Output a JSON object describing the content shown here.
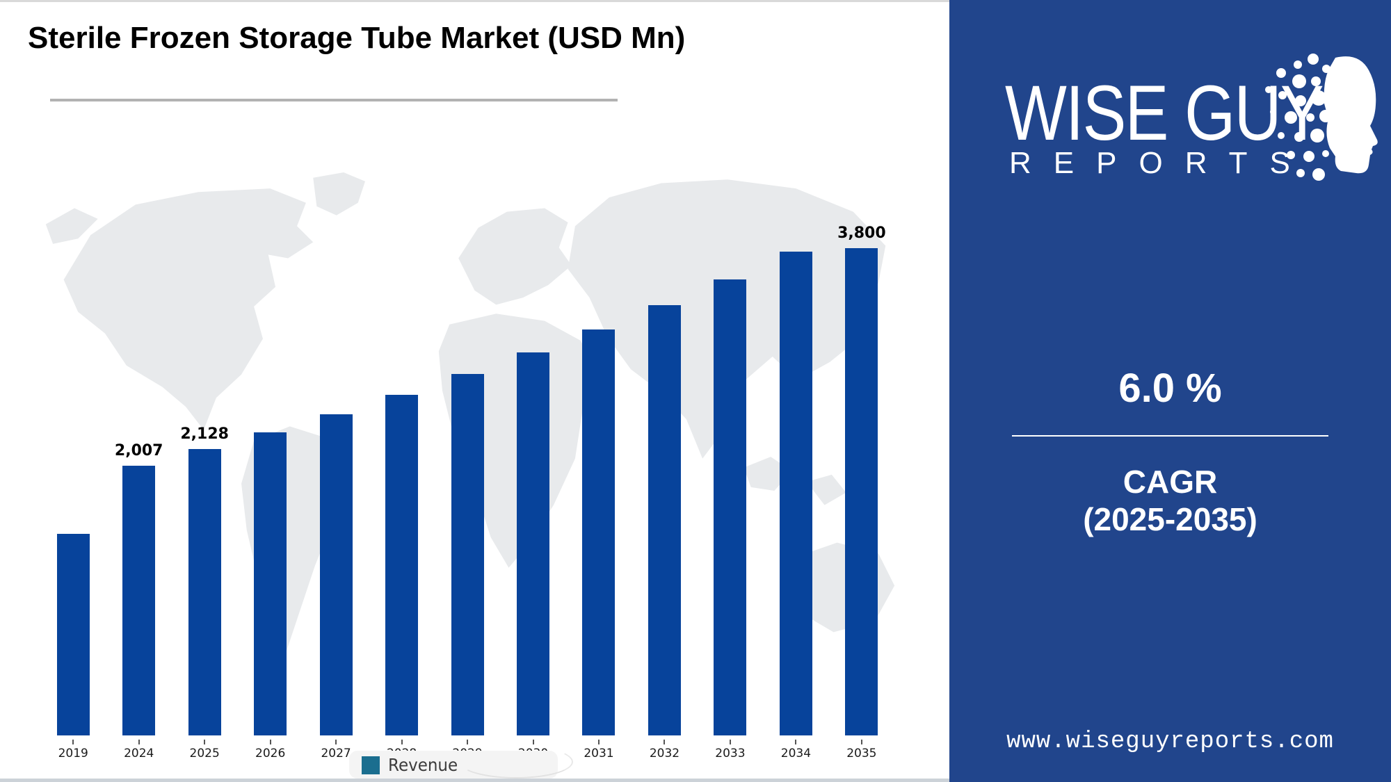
{
  "title": "Sterile Frozen Storage Tube Market (USD Mn)",
  "chart_data": {
    "type": "bar",
    "title": "Sterile Frozen Storage Tube Market (USD Mn)",
    "categories": [
      "2019",
      "2024",
      "2025",
      "2026",
      "2027",
      "2028",
      "2029",
      "2030",
      "2031",
      "2032",
      "2033",
      "2034",
      "2035"
    ],
    "series": [
      {
        "name": "Revenue",
        "values": [
          1500,
          2007,
          2128,
          2256,
          2391,
          2535,
          2687,
          2848,
          3019,
          3200,
          3392,
          3596,
          3800
        ]
      }
    ],
    "data_labels": [
      "",
      "2,007",
      "2,128",
      "",
      "",
      "",
      "",
      "",
      "",
      "",
      "",
      "",
      "3,800"
    ],
    "xlabel": "",
    "ylabel": "",
    "ylim": [
      0,
      3800
    ],
    "grid": false,
    "legend_position": "bottom",
    "legend": [
      {
        "label": "Revenue",
        "color": "#1b6e8f"
      }
    ],
    "bar_color": "#07439B"
  },
  "side_panel": {
    "logo_line1": "WISE GUY",
    "logo_line2": "REPORTS",
    "cagr_value": "6.0 %",
    "cagr_line1": "CAGR",
    "cagr_line2": "(2025-2035)",
    "website": "www.wiseguyreports.com",
    "background_color": "#21458C"
  },
  "colors": {
    "bar": "#07439B",
    "panel": "#21458C",
    "legend_swatch": "#1b6e8f",
    "map_watermark": "#e8eaec",
    "title_underline": "#b2b2b2"
  }
}
